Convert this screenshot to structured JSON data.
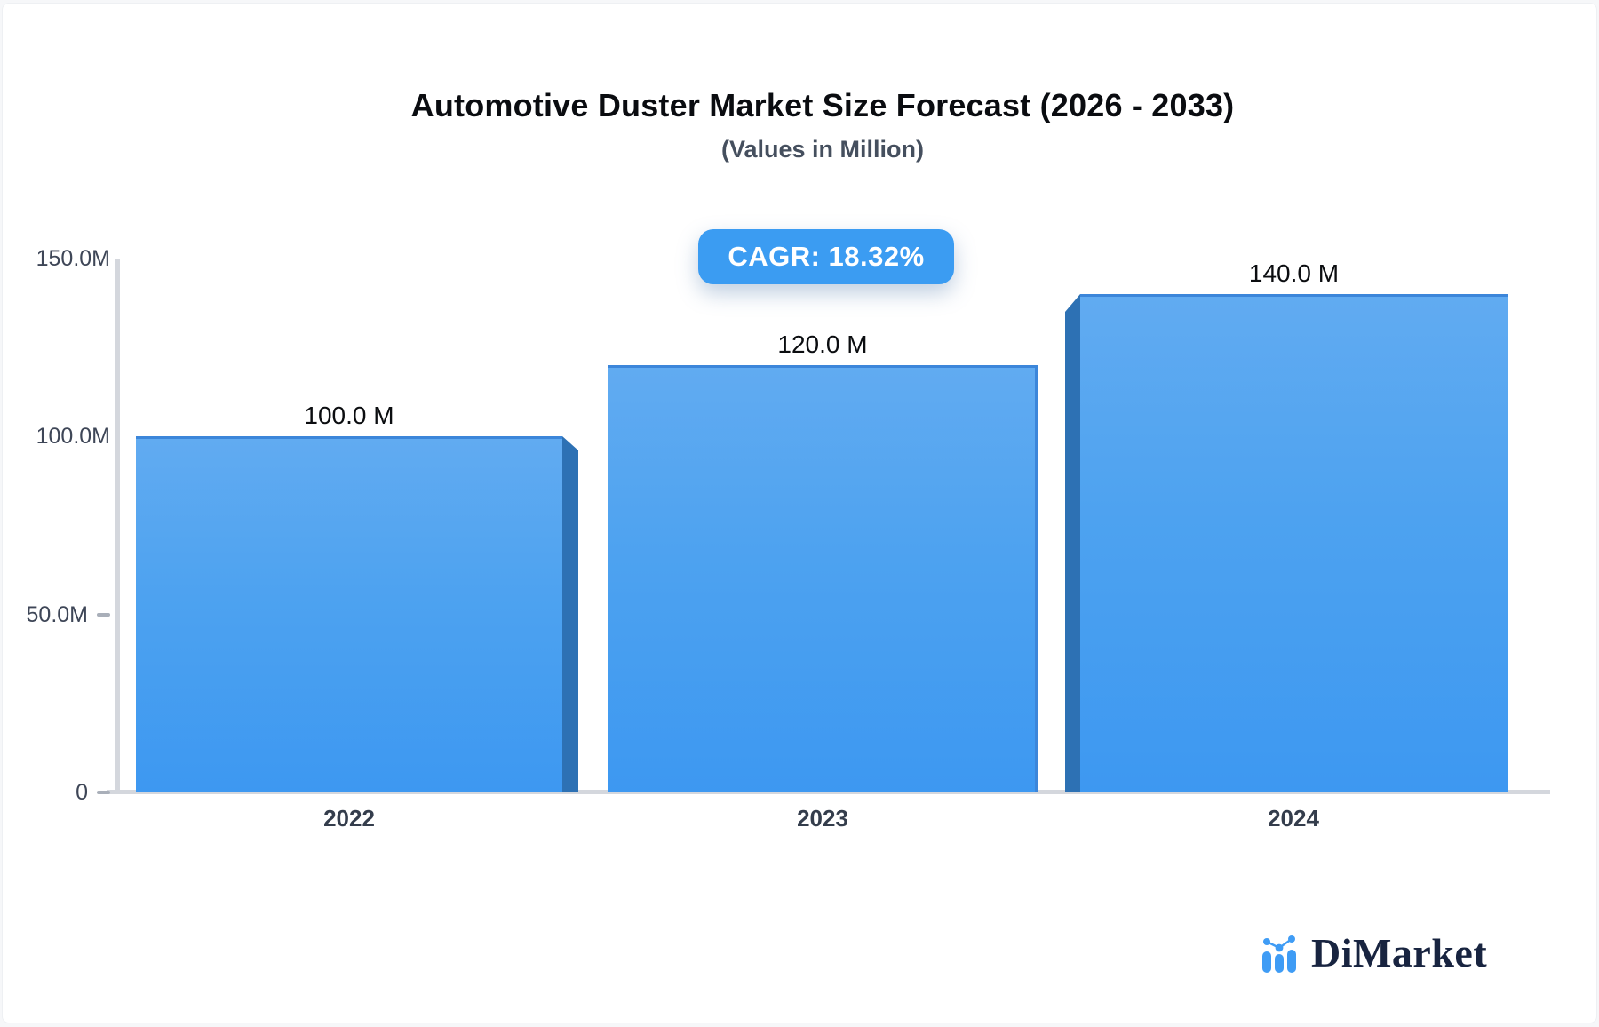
{
  "page": {
    "title": "Automotive Duster Market Size Forecast (2026 - 2033)",
    "subtitle": "(Values in Million)",
    "cagr_label": "CAGR: 18.32%"
  },
  "colors": {
    "bar_gradient_top": "#61abf1",
    "bar_gradient_bottom": "#3d98f1",
    "bar_top_edge": "#3c86da",
    "bar_3d_side": "#2d71b4",
    "badge_bg": "#3b9cf2",
    "axis_line": "#d4d7dd",
    "tick_text": "#3e4657",
    "logo_navy": "#182440",
    "logo_blue": "#3f9cf5"
  },
  "chart_data": {
    "type": "bar",
    "title": "Automotive Duster Market Size Forecast (2026 - 2033)",
    "subtitle": "(Values in Million)",
    "unit": "Million",
    "categories": [
      "2022",
      "2023",
      "2024"
    ],
    "values": [
      100,
      120,
      140
    ],
    "value_labels": [
      "100.0 M",
      "120.0 M",
      "140.0 M"
    ],
    "cagr_percent": "18.32%",
    "ylim": [
      0,
      150
    ],
    "yticks": [
      {
        "value": 150,
        "label": "150.0M"
      },
      {
        "value": 100,
        "label": "100.0M"
      },
      {
        "value": 50,
        "label": "50.0M"
      },
      {
        "value": 0,
        "label": "0"
      }
    ],
    "grid": false,
    "legend": false,
    "bar_style": "3d-bevel-blue-gradient"
  },
  "branding": {
    "logo_text": "DiMarket"
  }
}
